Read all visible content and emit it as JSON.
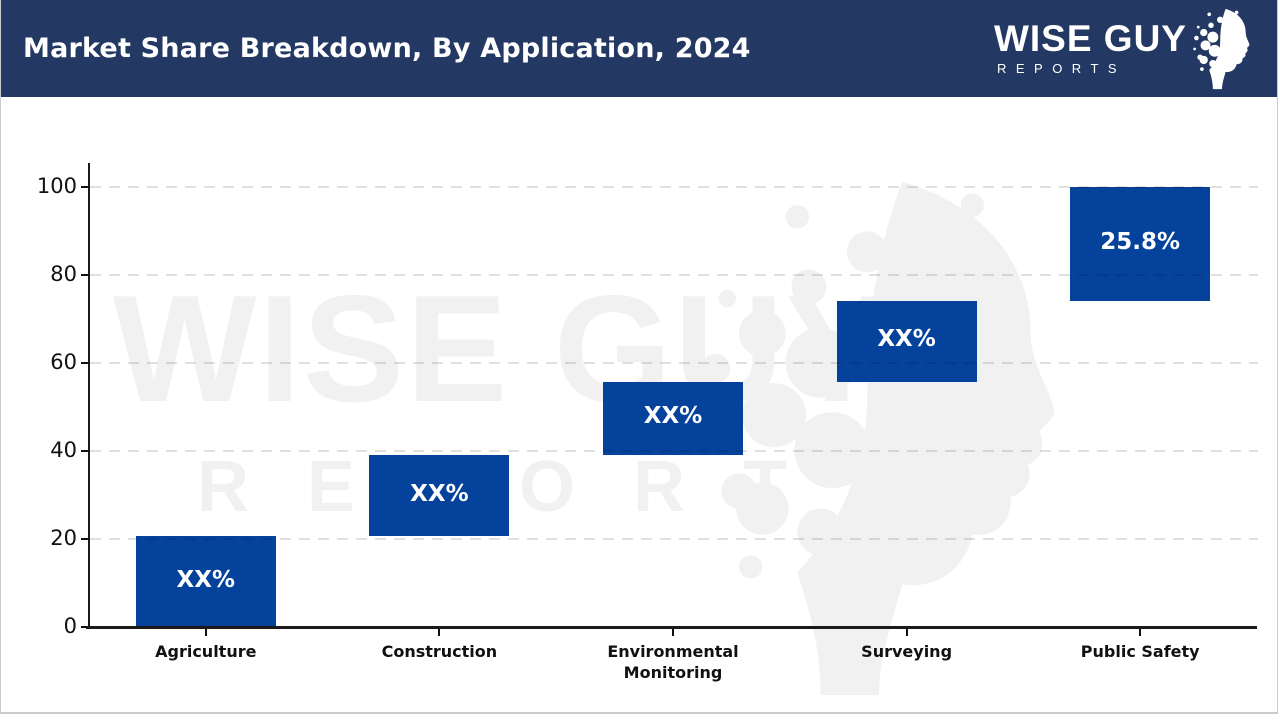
{
  "header": {
    "title": "Market Share Breakdown, By Application, 2024",
    "bg_color": "#233862",
    "logo": {
      "wordmark": "WISE GUY",
      "subtext": "REPORTS"
    }
  },
  "watermark": {
    "wordmark": "WISE GUY",
    "subtext": "REPORTS"
  },
  "chart_data": {
    "type": "bar",
    "variant": "waterfall-segment",
    "title": "Market Share Breakdown, By Application, 2024",
    "categories": [
      "Agriculture",
      "Construction",
      "Environmental Monitoring",
      "Surveying",
      "Public Safety"
    ],
    "bars": [
      {
        "category_lines": [
          "Agriculture"
        ],
        "start": 0,
        "value": 20.6,
        "label": "XX%"
      },
      {
        "category_lines": [
          "Construction"
        ],
        "start": 20.6,
        "value": 18.5,
        "label": "XX%"
      },
      {
        "category_lines": [
          "Environmental",
          "Monitoring"
        ],
        "start": 39.1,
        "value": 16.6,
        "label": "XX%"
      },
      {
        "category_lines": [
          "Surveying"
        ],
        "start": 55.7,
        "value": 18.5,
        "label": "XX%"
      },
      {
        "category_lines": [
          "Public Safety"
        ],
        "start": 74.2,
        "value": 25.8,
        "label": "25.8%"
      }
    ],
    "y_ticks": [
      0,
      20,
      40,
      60,
      80,
      100
    ],
    "ylim": [
      0,
      105
    ],
    "xlabel": "",
    "ylabel": "",
    "bar_color": "#04429C",
    "bar_label_color": "#ffffff",
    "grid": {
      "axis": "y",
      "style": "dashed",
      "color": "#e3e3e3"
    },
    "legend": "none"
  }
}
